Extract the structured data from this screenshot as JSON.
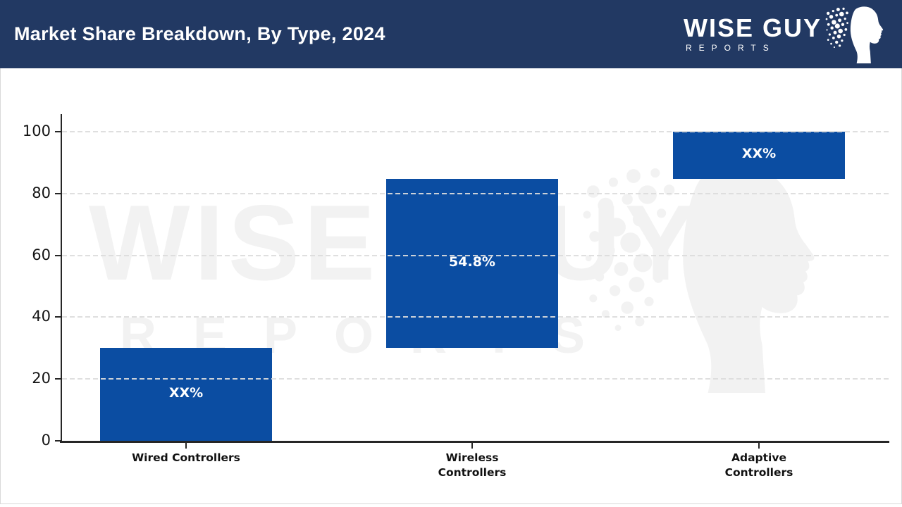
{
  "header": {
    "title": "Market Share Breakdown, By Type, 2024",
    "logo": {
      "line1": "WISE GUY",
      "line2": "REPORTS"
    }
  },
  "watermark": {
    "line1": "WISE GUY",
    "line2": "REPORTS"
  },
  "colors": {
    "header_bg": "#223963",
    "bar_blue": "#0b4da2",
    "gridline": "#dcdcdc",
    "axis": "#262626",
    "bar_label_text": "#ffffff",
    "watermark": "#f2f2f2"
  },
  "chart_data": {
    "type": "bar",
    "subtype": "waterfall",
    "title": "Market Share Breakdown, By Type, 2024",
    "categories": [
      "Wired Controllers",
      "Wireless\nControllers",
      "Adaptive\nControllers"
    ],
    "segments": [
      {
        "category": "Wired Controllers",
        "start": 0,
        "end": 30,
        "label": "XX%"
      },
      {
        "category": "Wireless Controllers",
        "start": 30,
        "end": 84.8,
        "label": "54.8%"
      },
      {
        "category": "Adaptive Controllers",
        "start": 84.8,
        "end": 100,
        "label": "XX%"
      }
    ],
    "ylim": [
      0,
      100
    ],
    "yticks": [
      0,
      20,
      40,
      60,
      80,
      100
    ],
    "grid": "horizontal-dashed",
    "legend": "none",
    "bar_color": "#0b4da2"
  }
}
